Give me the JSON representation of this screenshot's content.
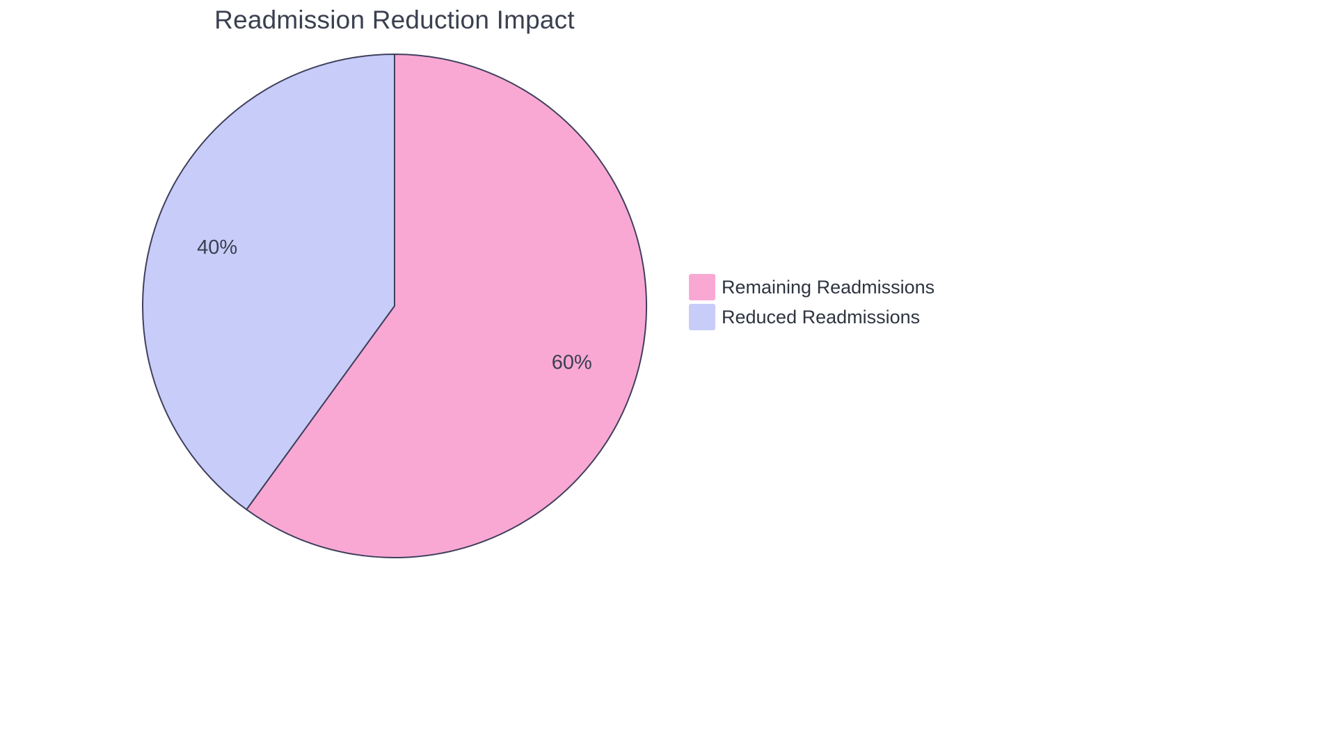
{
  "chart_data": {
    "type": "pie",
    "title": "Readmission Reduction Impact",
    "slices": [
      {
        "label": "Remaining Readmissions",
        "value": 60,
        "percent_label": "60%",
        "color": "#F9A8D4"
      },
      {
        "label": "Reduced Readmissions",
        "value": 40,
        "percent_label": "40%",
        "color": "#C7CDF8"
      }
    ],
    "start_angle_deg": 0,
    "direction": "clockwise",
    "stroke_color": "#3f3f5c",
    "background_color": "#ffffff",
    "legend_position": "right",
    "grid": false
  }
}
